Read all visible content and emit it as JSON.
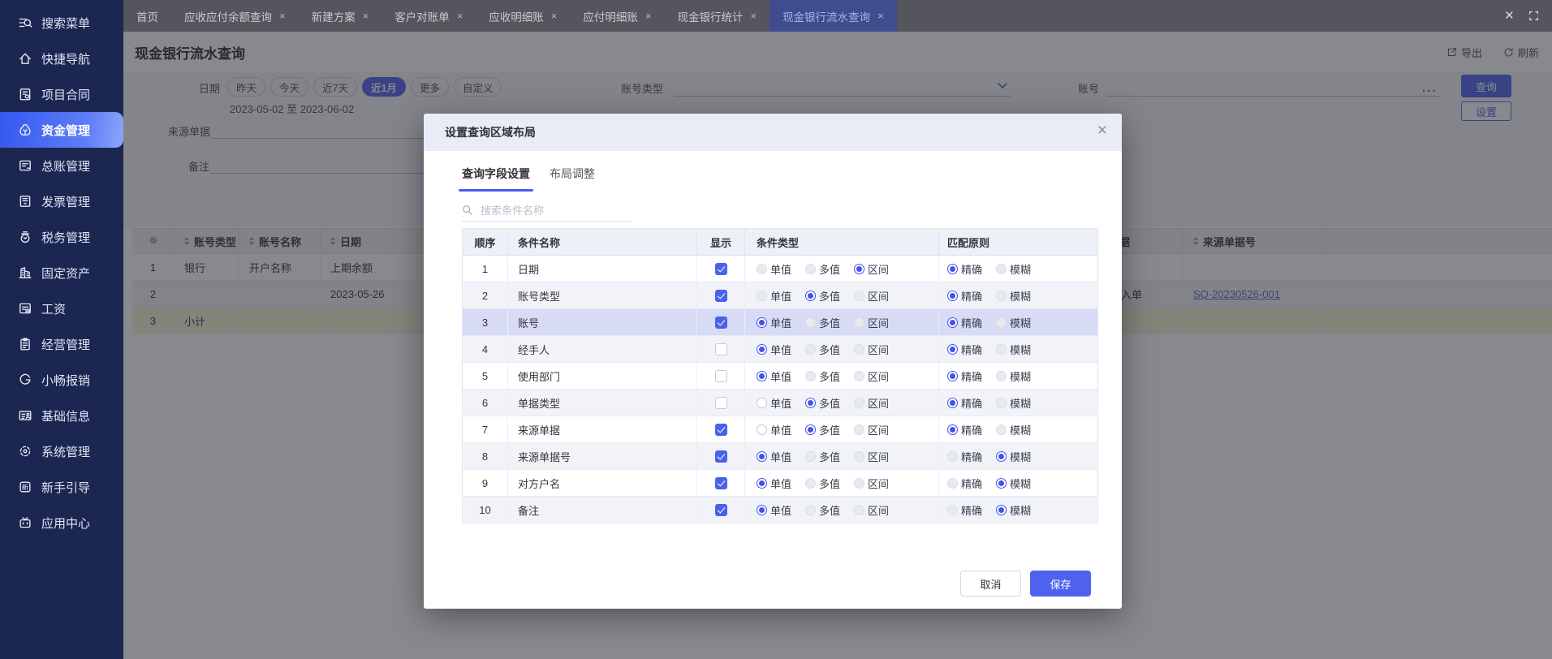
{
  "app": {
    "accent_color": "#4f62ee",
    "sidebar_color": "#1b2750"
  },
  "sidebar": {
    "items": [
      {
        "label": "搜索菜单",
        "icon": "search-menu-icon",
        "active": false
      },
      {
        "label": "快捷导航",
        "icon": "quick-nav-icon",
        "active": false
      },
      {
        "label": "项目合同",
        "icon": "project-contract-icon",
        "active": false
      },
      {
        "label": "资金管理",
        "icon": "funds-icon",
        "active": true
      },
      {
        "label": "总账管理",
        "icon": "ledger-icon",
        "active": false
      },
      {
        "label": "发票管理",
        "icon": "invoice-icon",
        "active": false
      },
      {
        "label": "税务管理",
        "icon": "tax-icon",
        "active": false
      },
      {
        "label": "固定资产",
        "icon": "fixed-assets-icon",
        "active": false
      },
      {
        "label": "工资",
        "icon": "salary-icon",
        "active": false
      },
      {
        "label": "经营管理",
        "icon": "operations-icon",
        "active": false
      },
      {
        "label": "小畅报销",
        "icon": "expense-icon",
        "active": false
      },
      {
        "label": "基础信息",
        "icon": "base-info-icon",
        "active": false
      },
      {
        "label": "系统管理",
        "icon": "system-icon",
        "active": false
      },
      {
        "label": "新手引导",
        "icon": "guide-icon",
        "active": false
      },
      {
        "label": "应用中心",
        "icon": "app-center-icon",
        "active": false
      }
    ]
  },
  "tabbar": {
    "tabs": [
      {
        "label": "首页",
        "closable": false,
        "active": false
      },
      {
        "label": "应收应付余额查询",
        "closable": true,
        "active": false
      },
      {
        "label": "新建方案",
        "closable": true,
        "active": false
      },
      {
        "label": "客户对账单",
        "closable": true,
        "active": false
      },
      {
        "label": "应收明细账",
        "closable": true,
        "active": false
      },
      {
        "label": "应付明细账",
        "closable": true,
        "active": false
      },
      {
        "label": "现金银行统计",
        "closable": true,
        "active": false
      },
      {
        "label": "现金银行流水查询",
        "closable": true,
        "active": true
      }
    ],
    "window_controls": {
      "close_glyph": "×",
      "fullscreen_icon": "fullscreen-icon"
    }
  },
  "page": {
    "title": "现金银行流水查询",
    "export_label": "导出",
    "refresh_label": "刷新"
  },
  "filters": {
    "date_label": "日期",
    "date_pills": [
      {
        "label": "昨天",
        "active": false
      },
      {
        "label": "今天",
        "active": false
      },
      {
        "label": "近7天",
        "active": false
      },
      {
        "label": "近1月",
        "active": true
      },
      {
        "label": "更多",
        "active": false
      },
      {
        "label": "自定义",
        "active": false
      }
    ],
    "date_range": "2023-05-02 至 2023-06-02",
    "account_type_label": "账号类型",
    "account_label": "账号",
    "source_doc_label": "来源单据",
    "remark_label": "备注",
    "more_label": "...",
    "query_label": "查询",
    "settings_label": "设置"
  },
  "bg_table": {
    "headers": {
      "account_type": "账号类型",
      "account_name": "账号名称",
      "date": "日期",
      "source_doc": "来源单据",
      "source_doc_no": "来源单据号"
    },
    "rows": [
      {
        "num": "1",
        "account_type": "银行",
        "account_name": "开户名称",
        "date": "上期余额",
        "source_doc": "",
        "source_doc_no": "",
        "state": "normal"
      },
      {
        "num": "2",
        "account_type": "",
        "account_name": "",
        "date": "2023-05-26",
        "source_doc": "收入单",
        "source_doc_no": "SQ-20230526-001",
        "link": true,
        "state": "normal"
      },
      {
        "num": "3",
        "account_type": "小计",
        "account_name": "",
        "date": "",
        "source_doc": "",
        "source_doc_no": "",
        "state": "subtotal"
      }
    ]
  },
  "modal": {
    "title": "设置查询区域布局",
    "close_glyph": "×",
    "tabs": [
      "查询字段设置",
      "布局调整"
    ],
    "search_placeholder": "搜索条件名称",
    "columns": {
      "order": "顺序",
      "name": "条件名称",
      "show": "显示",
      "type": "条件类型",
      "match": "匹配原则"
    },
    "rows": [
      {
        "order": "1",
        "name": "日期",
        "checked": true,
        "state": "normal",
        "type": [
          {
            "label": "单值",
            "state": "disabled"
          },
          {
            "label": "多值",
            "state": "disabled"
          },
          {
            "label": "区间",
            "state": "selected"
          }
        ],
        "match": [
          {
            "label": "精确",
            "state": "selected"
          },
          {
            "label": "模糊",
            "state": "disabled"
          }
        ]
      },
      {
        "order": "2",
        "name": "账号类型",
        "checked": true,
        "state": "normal",
        "type": [
          {
            "label": "单值",
            "state": "disabled"
          },
          {
            "label": "多值",
            "state": "selected"
          },
          {
            "label": "区间",
            "state": "disabled"
          }
        ],
        "match": [
          {
            "label": "精确",
            "state": "selected"
          },
          {
            "label": "模糊",
            "state": "disabled"
          }
        ]
      },
      {
        "order": "3",
        "name": "账号",
        "checked": true,
        "state": "highlight",
        "type": [
          {
            "label": "单值",
            "state": "selected"
          },
          {
            "label": "多值",
            "state": "disabled"
          },
          {
            "label": "区间",
            "state": "disabled"
          }
        ],
        "match": [
          {
            "label": "精确",
            "state": "selected"
          },
          {
            "label": "模糊",
            "state": "disabled"
          }
        ]
      },
      {
        "order": "4",
        "name": "经手人",
        "checked": false,
        "state": "normal",
        "type": [
          {
            "label": "单值",
            "state": "selected"
          },
          {
            "label": "多值",
            "state": "disabled"
          },
          {
            "label": "区间",
            "state": "disabled"
          }
        ],
        "match": [
          {
            "label": "精确",
            "state": "selected"
          },
          {
            "label": "模糊",
            "state": "disabled"
          }
        ]
      },
      {
        "order": "5",
        "name": "使用部门",
        "checked": false,
        "state": "normal",
        "type": [
          {
            "label": "单值",
            "state": "selected"
          },
          {
            "label": "多值",
            "state": "disabled"
          },
          {
            "label": "区间",
            "state": "disabled"
          }
        ],
        "match": [
          {
            "label": "精确",
            "state": "selected"
          },
          {
            "label": "模糊",
            "state": "disabled"
          }
        ]
      },
      {
        "order": "6",
        "name": "单据类型",
        "checked": false,
        "state": "normal",
        "type": [
          {
            "label": "单值",
            "state": "enabled"
          },
          {
            "label": "多值",
            "state": "selected"
          },
          {
            "label": "区间",
            "state": "disabled"
          }
        ],
        "match": [
          {
            "label": "精确",
            "state": "selected"
          },
          {
            "label": "模糊",
            "state": "disabled"
          }
        ]
      },
      {
        "order": "7",
        "name": "来源单据",
        "checked": true,
        "state": "normal",
        "type": [
          {
            "label": "单值",
            "state": "enabled"
          },
          {
            "label": "多值",
            "state": "selected"
          },
          {
            "label": "区间",
            "state": "disabled"
          }
        ],
        "match": [
          {
            "label": "精确",
            "state": "selected"
          },
          {
            "label": "模糊",
            "state": "disabled"
          }
        ]
      },
      {
        "order": "8",
        "name": "来源单据号",
        "checked": true,
        "state": "normal",
        "type": [
          {
            "label": "单值",
            "state": "selected"
          },
          {
            "label": "多值",
            "state": "disabled"
          },
          {
            "label": "区间",
            "state": "disabled"
          }
        ],
        "match": [
          {
            "label": "精确",
            "state": "disabled"
          },
          {
            "label": "模糊",
            "state": "selected"
          }
        ]
      },
      {
        "order": "9",
        "name": "对方户名",
        "checked": true,
        "state": "normal",
        "type": [
          {
            "label": "单值",
            "state": "selected"
          },
          {
            "label": "多值",
            "state": "disabled"
          },
          {
            "label": "区间",
            "state": "disabled"
          }
        ],
        "match": [
          {
            "label": "精确",
            "state": "disabled"
          },
          {
            "label": "模糊",
            "state": "selected"
          }
        ]
      },
      {
        "order": "10",
        "name": "备注",
        "checked": true,
        "state": "normal",
        "type": [
          {
            "label": "单值",
            "state": "selected"
          },
          {
            "label": "多值",
            "state": "disabled"
          },
          {
            "label": "区间",
            "state": "disabled"
          }
        ],
        "match": [
          {
            "label": "精确",
            "state": "disabled"
          },
          {
            "label": "模糊",
            "state": "selected"
          }
        ]
      }
    ],
    "cancel_label": "取消",
    "save_label": "保存"
  },
  "icons": [
    "search-menu-icon",
    "quick-nav-icon",
    "project-contract-icon",
    "funds-icon",
    "ledger-icon",
    "invoice-icon",
    "tax-icon",
    "fixed-assets-icon",
    "salary-icon",
    "operations-icon",
    "expense-icon",
    "base-info-icon",
    "system-icon",
    "guide-icon",
    "app-center-icon",
    "close-icon",
    "fullscreen-icon",
    "export-icon",
    "refresh-icon",
    "chevron-down-icon",
    "search-icon",
    "gear-icon",
    "sort-icon"
  ]
}
